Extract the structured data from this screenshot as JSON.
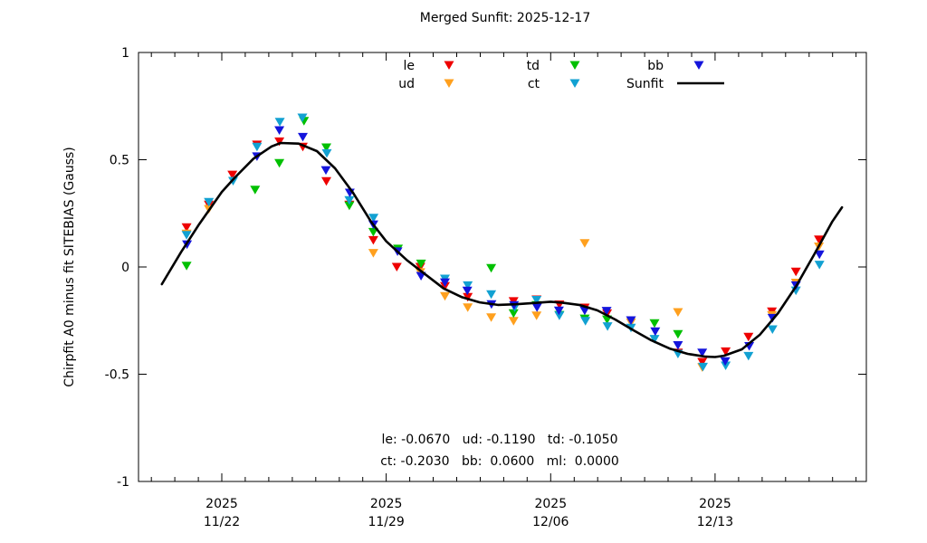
{
  "title": "Merged Sunfit: 2025-12-17",
  "ylabel": "Chirpfit A0 minus fit SITEBIAS (Gauss)",
  "stats_line1": "le: -0.0670   ud: -0.1190   td: -0.1050",
  "stats_line2": "ct: -0.2030   bb:  0.0600   ml:  0.0000",
  "legend": {
    "entries": [
      {
        "label": "le",
        "series": "le",
        "row": 0,
        "col": 0,
        "marker": "triangle"
      },
      {
        "label": "td",
        "series": "td",
        "row": 0,
        "col": 1,
        "marker": "triangle"
      },
      {
        "label": "bb",
        "series": "bb",
        "row": 0,
        "col": 2,
        "marker": "triangle"
      },
      {
        "label": "ud",
        "series": "ud",
        "row": 1,
        "col": 0,
        "marker": "triangle"
      },
      {
        "label": "ct",
        "series": "ct",
        "row": 1,
        "col": 1,
        "marker": "triangle"
      },
      {
        "label": "Sunfit",
        "series": "Sunfit",
        "row": 1,
        "col": 2,
        "marker": "line"
      }
    ]
  },
  "chart_data": {
    "type": "scatter",
    "title": "Merged Sunfit: 2025-12-17",
    "xlabel": "",
    "ylabel": "Chirpfit A0 minus fit SITEBIAS (Gauss)",
    "ylim": [
      -1,
      1
    ],
    "x_unit": "days since 2025-11-22",
    "xlim_days": [
      -3.55,
      27.45
    ],
    "grid": false,
    "legend_position": "top-center-inside",
    "yticks": [
      {
        "v": 1,
        "label": "1"
      },
      {
        "v": 0.5,
        "label": "0.5"
      },
      {
        "v": 0,
        "label": "0"
      },
      {
        "v": -0.5,
        "label": "-0.5"
      },
      {
        "v": -1,
        "label": "-1"
      }
    ],
    "xticks": [
      {
        "day": 0,
        "line1": "2025",
        "line2": "11/22"
      },
      {
        "day": 7,
        "line1": "2025",
        "line2": "11/29"
      },
      {
        "day": 14,
        "line1": "2025",
        "line2": "12/06"
      },
      {
        "day": 21,
        "line1": "2025",
        "line2": "12/13"
      }
    ],
    "stats": {
      "le": -0.067,
      "ud": -0.119,
      "td": -0.105,
      "ct": -0.203,
      "bb": 0.06,
      "ml": 0.0
    },
    "series": [
      {
        "name": "le",
        "color": "#ee0000",
        "marker": "triangle-down",
        "points": [
          [
            -1.5,
            0.185
          ],
          [
            -0.55,
            0.29
          ],
          [
            0.45,
            0.43
          ],
          [
            1.5,
            0.57
          ],
          [
            2.45,
            0.585
          ],
          [
            3.45,
            0.56
          ],
          [
            4.45,
            0.4
          ],
          [
            5.43,
            0.29
          ],
          [
            6.45,
            0.125
          ],
          [
            7.45,
            0.0
          ],
          [
            8.45,
            0.0
          ],
          [
            9.5,
            -0.09
          ],
          [
            10.47,
            -0.14
          ],
          [
            12.42,
            -0.16
          ],
          [
            13.4,
            -0.152
          ],
          [
            14.37,
            -0.175
          ],
          [
            15.45,
            -0.19
          ],
          [
            16.4,
            -0.217
          ],
          [
            19.42,
            -0.4
          ],
          [
            20.45,
            -0.443
          ],
          [
            21.45,
            -0.394
          ],
          [
            22.42,
            -0.326
          ],
          [
            23.42,
            -0.208
          ],
          [
            24.44,
            -0.022
          ],
          [
            25.42,
            0.128
          ]
        ]
      },
      {
        "name": "ud",
        "color": "#ffa01e",
        "marker": "triangle-down",
        "points": [
          [
            -1.5,
            0.155
          ],
          [
            -0.55,
            0.27
          ],
          [
            6.45,
            0.065
          ],
          [
            8.45,
            -0.025
          ],
          [
            9.5,
            -0.136
          ],
          [
            10.47,
            -0.189
          ],
          [
            11.47,
            -0.235
          ],
          [
            12.42,
            -0.252
          ],
          [
            13.4,
            -0.227
          ],
          [
            15.45,
            0.111
          ],
          [
            17.42,
            -0.259
          ],
          [
            19.42,
            -0.211
          ],
          [
            20.45,
            -0.468
          ],
          [
            23.42,
            -0.225
          ],
          [
            24.44,
            -0.074
          ],
          [
            25.42,
            0.095
          ]
        ]
      },
      {
        "name": "td",
        "color": "#00c000",
        "marker": "triangle-down",
        "points": [
          [
            -1.5,
            0.005
          ],
          [
            1.42,
            0.36
          ],
          [
            2.45,
            0.484
          ],
          [
            3.5,
            0.68
          ],
          [
            4.45,
            0.557
          ],
          [
            5.43,
            0.286
          ],
          [
            6.45,
            0.163
          ],
          [
            7.5,
            0.085
          ],
          [
            8.48,
            0.015
          ],
          [
            11.47,
            -0.005
          ],
          [
            12.42,
            -0.216
          ],
          [
            13.4,
            -0.178
          ],
          [
            14.37,
            -0.224
          ],
          [
            15.45,
            -0.241
          ],
          [
            16.4,
            -0.245
          ],
          [
            18.42,
            -0.263
          ],
          [
            19.42,
            -0.313
          ]
        ]
      },
      {
        "name": "ct",
        "color": "#12a1d2",
        "marker": "triangle-down",
        "points": [
          [
            -1.5,
            0.149
          ],
          [
            -0.55,
            0.303
          ],
          [
            0.48,
            0.401
          ],
          [
            1.5,
            0.56
          ],
          [
            2.47,
            0.676
          ],
          [
            3.43,
            0.696
          ],
          [
            4.47,
            0.53
          ],
          [
            5.43,
            0.311
          ],
          [
            6.46,
            0.229
          ],
          [
            9.5,
            -0.055
          ],
          [
            10.47,
            -0.086
          ],
          [
            11.47,
            -0.128
          ],
          [
            12.47,
            -0.189
          ],
          [
            13.4,
            -0.154
          ],
          [
            14.37,
            -0.227
          ],
          [
            15.48,
            -0.252
          ],
          [
            16.42,
            -0.277
          ],
          [
            17.42,
            -0.284
          ],
          [
            18.42,
            -0.336
          ],
          [
            19.42,
            -0.405
          ],
          [
            20.48,
            -0.466
          ],
          [
            21.45,
            -0.46
          ],
          [
            22.42,
            -0.415
          ],
          [
            23.44,
            -0.291
          ],
          [
            24.44,
            -0.11
          ],
          [
            25.44,
            0.01
          ]
        ]
      },
      {
        "name": "bb",
        "color": "#1414dc",
        "marker": "triangle-down",
        "points": [
          [
            -1.48,
            0.105
          ],
          [
            1.5,
            0.515
          ],
          [
            2.45,
            0.637
          ],
          [
            3.45,
            0.606
          ],
          [
            4.43,
            0.451
          ],
          [
            5.45,
            0.346
          ],
          [
            6.45,
            0.198
          ],
          [
            7.48,
            0.072
          ],
          [
            8.48,
            -0.042
          ],
          [
            9.5,
            -0.072
          ],
          [
            10.45,
            -0.111
          ],
          [
            11.48,
            -0.174
          ],
          [
            12.44,
            -0.178
          ],
          [
            13.42,
            -0.189
          ],
          [
            14.35,
            -0.204
          ],
          [
            15.45,
            -0.204
          ],
          [
            16.38,
            -0.205
          ],
          [
            17.42,
            -0.249
          ],
          [
            18.45,
            -0.301
          ],
          [
            19.42,
            -0.365
          ],
          [
            20.45,
            -0.4
          ],
          [
            21.43,
            -0.44
          ],
          [
            22.45,
            -0.369
          ],
          [
            23.44,
            -0.238
          ],
          [
            24.44,
            -0.086
          ],
          [
            25.44,
            0.058
          ]
        ]
      },
      {
        "name": "Sunfit",
        "color": "#000000",
        "type": "line",
        "points": [
          [
            -2.55,
            -0.08
          ],
          [
            -1.73,
            0.07
          ],
          [
            -0.96,
            0.2
          ],
          [
            0.0,
            0.35
          ],
          [
            0.58,
            0.42
          ],
          [
            1.35,
            0.505
          ],
          [
            2.12,
            0.562
          ],
          [
            2.5,
            0.578
          ],
          [
            3.27,
            0.575
          ],
          [
            4.05,
            0.54
          ],
          [
            4.82,
            0.46
          ],
          [
            5.59,
            0.345
          ],
          [
            6.36,
            0.21
          ],
          [
            7.0,
            0.12
          ],
          [
            7.9,
            0.03
          ],
          [
            8.67,
            -0.035
          ],
          [
            9.44,
            -0.1
          ],
          [
            10.21,
            -0.14
          ],
          [
            10.98,
            -0.165
          ],
          [
            11.75,
            -0.177
          ],
          [
            12.52,
            -0.174
          ],
          [
            13.29,
            -0.168
          ],
          [
            14.0,
            -0.162
          ],
          [
            14.52,
            -0.167
          ],
          [
            15.21,
            -0.177
          ],
          [
            15.98,
            -0.202
          ],
          [
            16.75,
            -0.245
          ],
          [
            17.52,
            -0.295
          ],
          [
            18.29,
            -0.342
          ],
          [
            19.06,
            -0.38
          ],
          [
            19.83,
            -0.405
          ],
          [
            20.6,
            -0.418
          ],
          [
            21.0,
            -0.42
          ],
          [
            21.37,
            -0.414
          ],
          [
            22.14,
            -0.384
          ],
          [
            22.91,
            -0.315
          ],
          [
            23.68,
            -0.215
          ],
          [
            24.45,
            -0.089
          ],
          [
            25.22,
            0.059
          ],
          [
            25.99,
            0.212
          ],
          [
            26.4,
            0.278
          ]
        ]
      }
    ]
  }
}
